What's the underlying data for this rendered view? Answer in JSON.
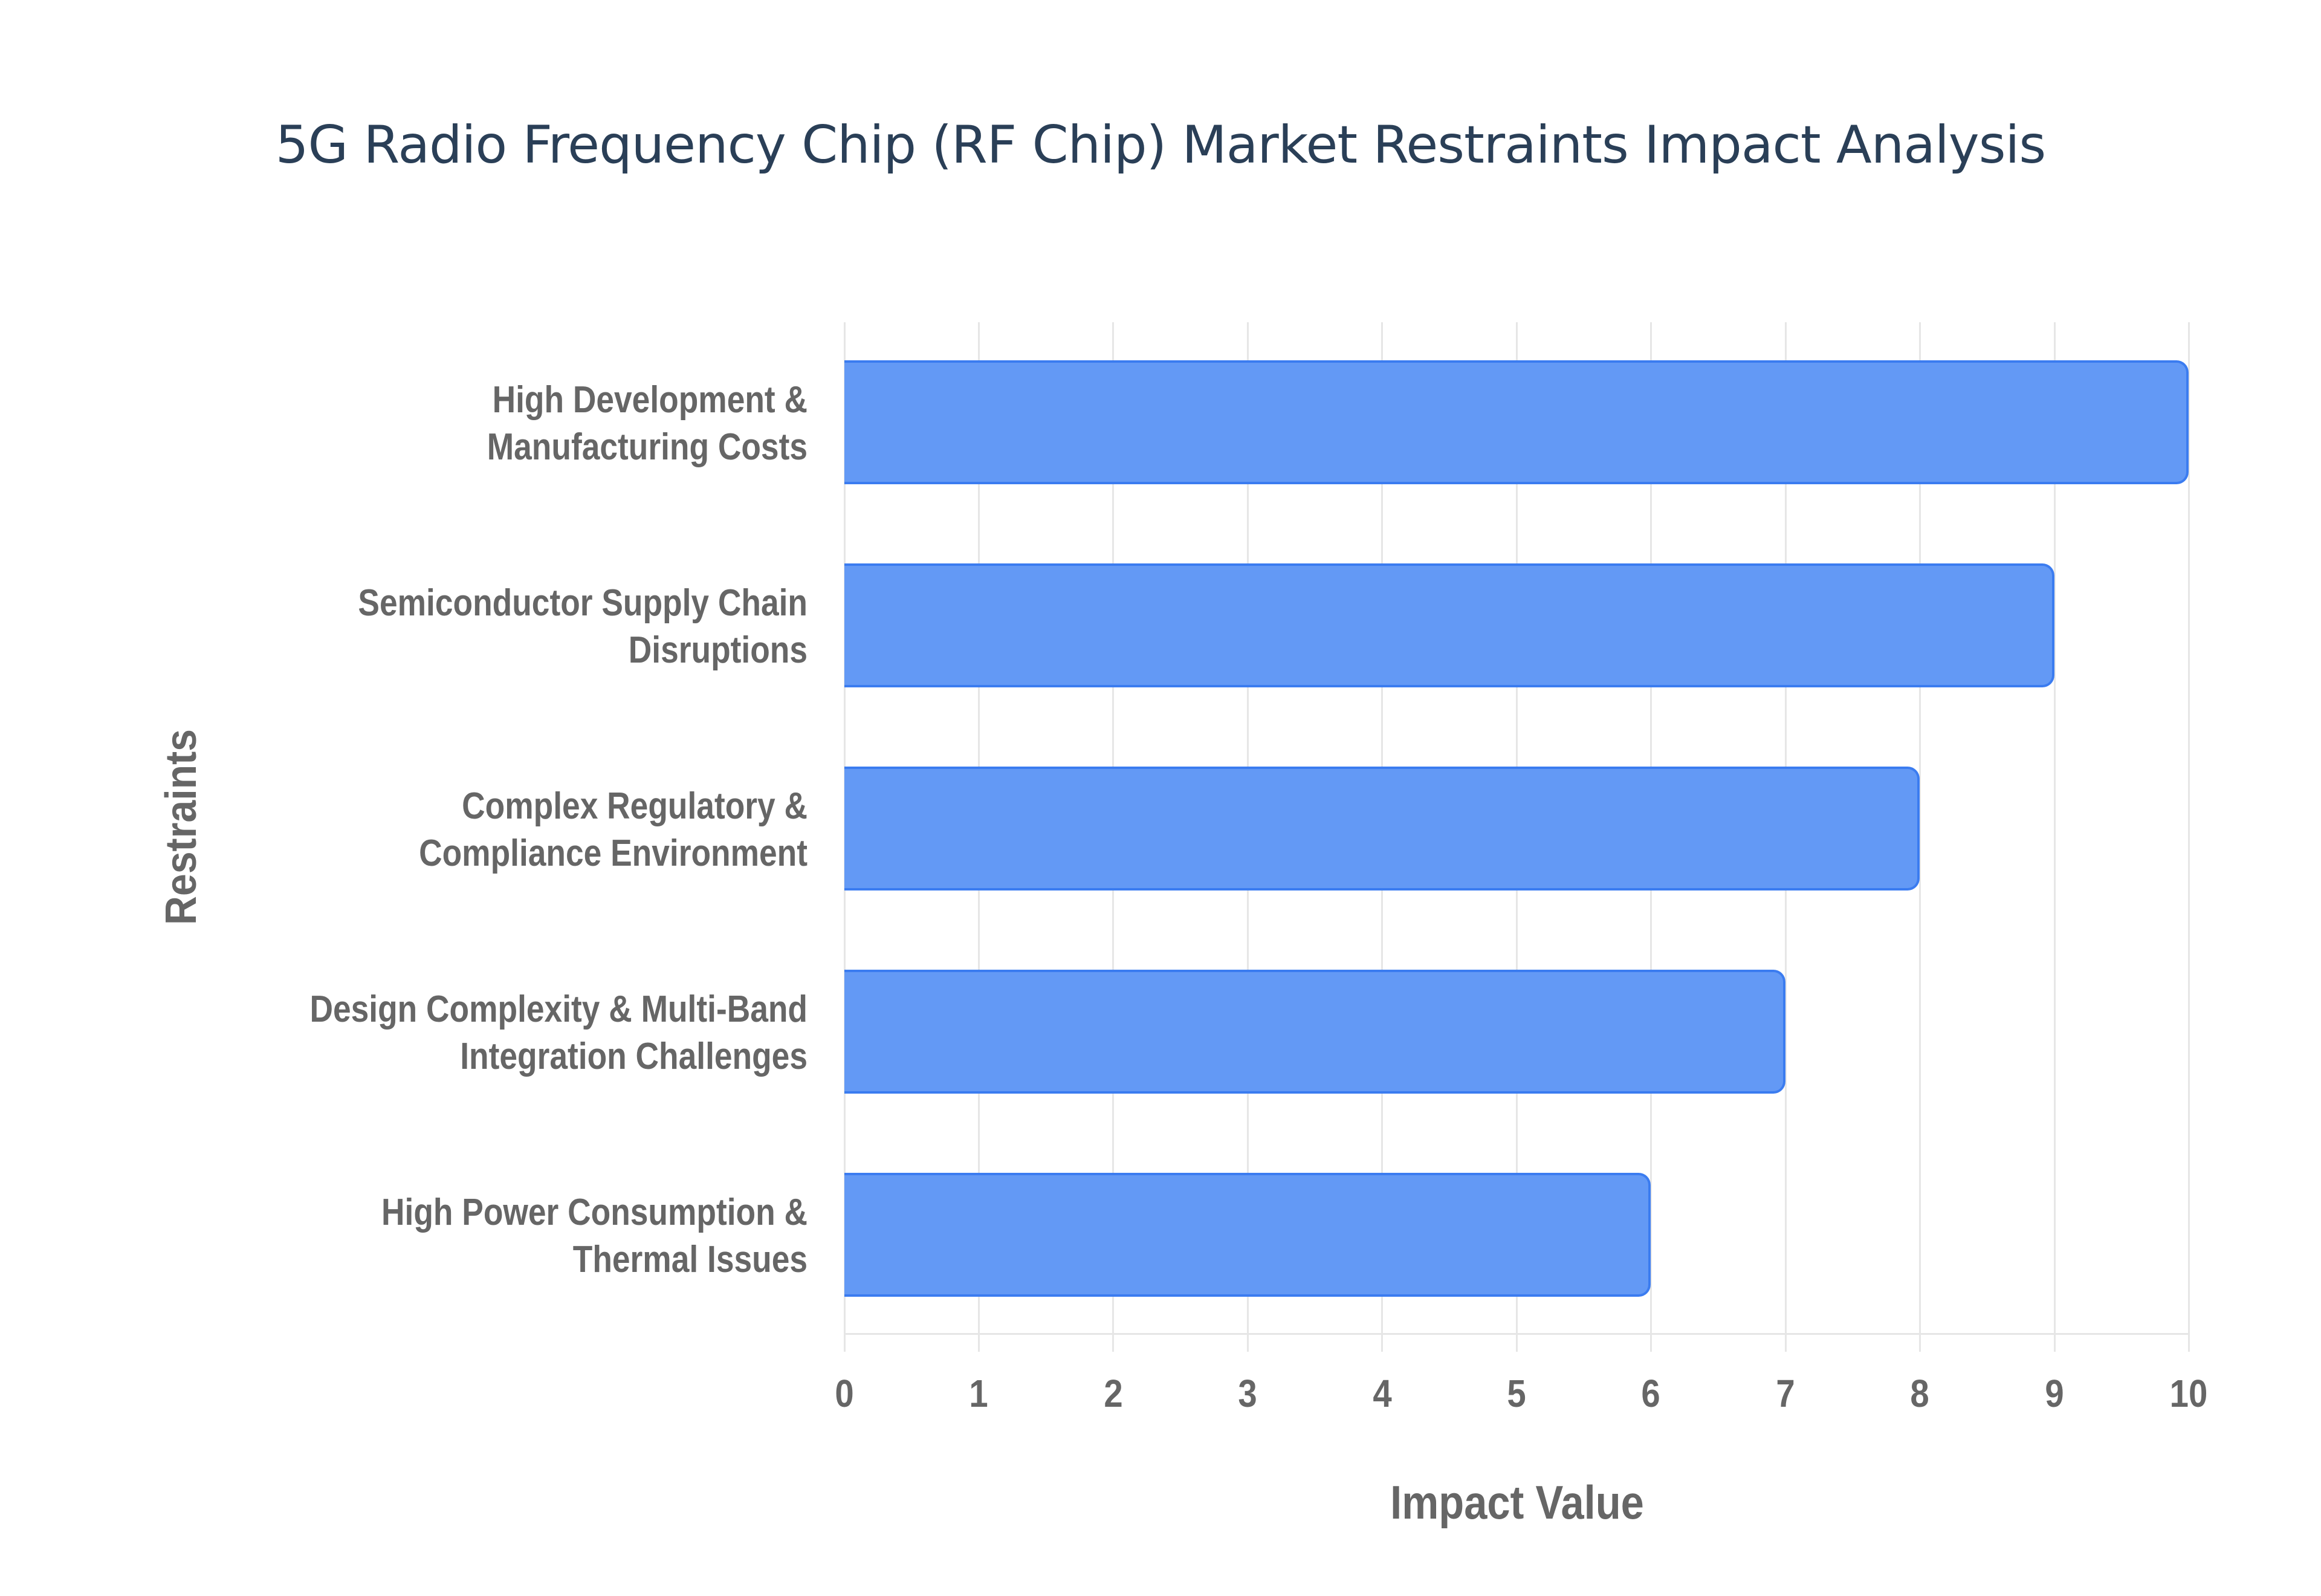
{
  "title": "5G Radio Frequency Chip (RF Chip) Market Restraints Impact Analysis",
  "colors": {
    "bar_fill": "#6399f5",
    "bar_border": "#3b7cf0",
    "title": "#2a3f57",
    "axis_text": "#666666",
    "grid": "#e6e6e6"
  },
  "axes": {
    "x_title": "Impact Value",
    "y_title": "Restraints",
    "x_ticks": [
      "0",
      "1",
      "2",
      "3",
      "4",
      "5",
      "6",
      "7",
      "8",
      "9",
      "10"
    ]
  },
  "bars": [
    {
      "label_line1": "High Development &",
      "label_line2": "Manufacturing Costs",
      "value": 10
    },
    {
      "label_line1": "Semiconductor Supply Chain",
      "label_line2": "Disruptions",
      "value": 9
    },
    {
      "label_line1": "Complex Regulatory &",
      "label_line2": "Compliance Environment",
      "value": 8
    },
    {
      "label_line1": "Design Complexity & Multi-Band",
      "label_line2": "Integration Challenges",
      "value": 7
    },
    {
      "label_line1": "High Power Consumption &",
      "label_line2": "Thermal Issues",
      "value": 6
    }
  ],
  "chart_data": {
    "type": "bar",
    "orientation": "horizontal",
    "title": "5G Radio Frequency Chip (RF Chip) Market Restraints Impact Analysis",
    "categories": [
      "High Development & Manufacturing Costs",
      "Semiconductor Supply Chain Disruptions",
      "Complex Regulatory & Compliance Environment",
      "Design Complexity & Multi-Band Integration Challenges",
      "High Power Consumption & Thermal Issues"
    ],
    "values": [
      10,
      9,
      8,
      7,
      6
    ],
    "xlabel": "Impact Value",
    "ylabel": "Restraints",
    "xlim": [
      0,
      10
    ],
    "x_ticks": [
      0,
      1,
      2,
      3,
      4,
      5,
      6,
      7,
      8,
      9,
      10
    ],
    "grid": true,
    "legend": "none"
  }
}
